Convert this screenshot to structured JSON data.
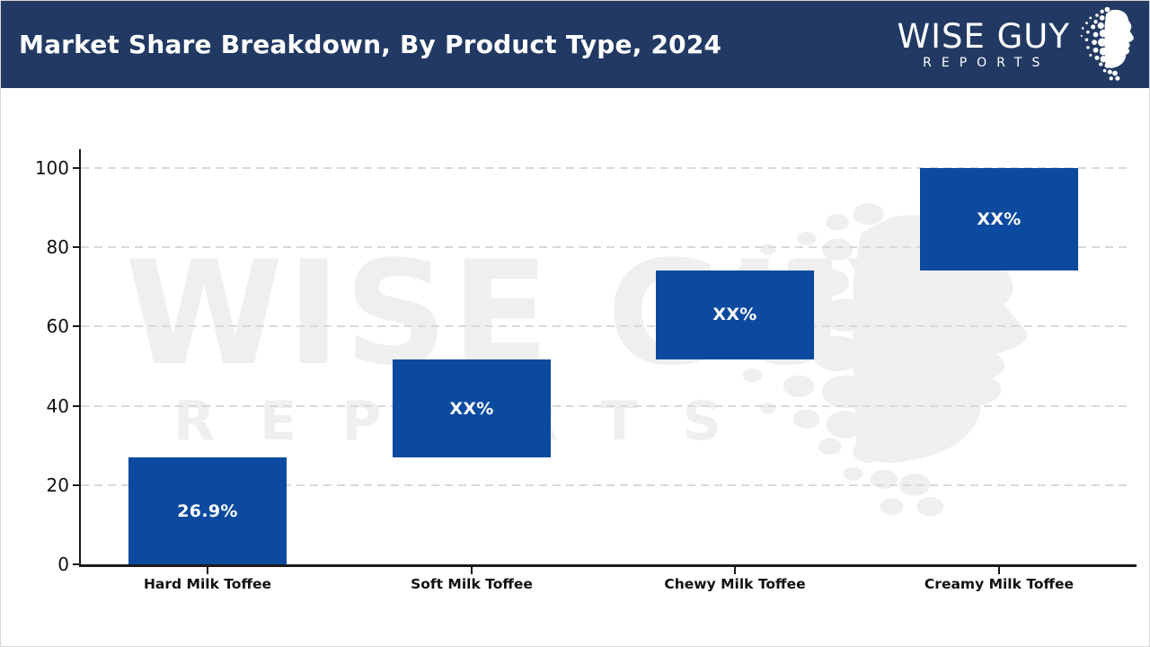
{
  "header": {
    "title": "Market Share Breakdown, By Product Type, 2024",
    "logo": {
      "line1": "WISE GUY",
      "line2": "REPORTS"
    }
  },
  "watermark": {
    "line1": "WISE GUY",
    "line2": "REPORTS"
  },
  "chart_data": {
    "type": "bar",
    "subtype": "waterfall",
    "title": "Market Share Breakdown, By Product Type, 2024",
    "categories": [
      "Hard Milk Toffee",
      "Soft Milk Toffee",
      "Chewy Milk Toffee",
      "Creamy Milk Toffee"
    ],
    "segments": [
      {
        "category": "Hard Milk Toffee",
        "start": 0,
        "end": 26.9,
        "label": "26.9%"
      },
      {
        "category": "Soft Milk Toffee",
        "start": 26.9,
        "end": 51.7,
        "label": "XX%"
      },
      {
        "category": "Chewy Milk Toffee",
        "start": 51.7,
        "end": 74.2,
        "label": "XX%"
      },
      {
        "category": "Creamy Milk Toffee",
        "start": 74.2,
        "end": 100,
        "label": "XX%"
      }
    ],
    "y_ticks": [
      0,
      20,
      40,
      60,
      80,
      100
    ],
    "ylim": [
      0,
      105
    ],
    "xlabel": "",
    "ylabel": "",
    "grid": "horizontal-dashed",
    "legend": "none",
    "bar_color": "#0b4a9e",
    "bar_label_color": "#ffffff"
  },
  "colors": {
    "header_bg": "#223a63",
    "bar": "#0b4a9e",
    "grid": "#d9d9d9",
    "axis": "#1a1a1a",
    "watermark": "#efefef",
    "page_border": "#d9d9d9"
  }
}
